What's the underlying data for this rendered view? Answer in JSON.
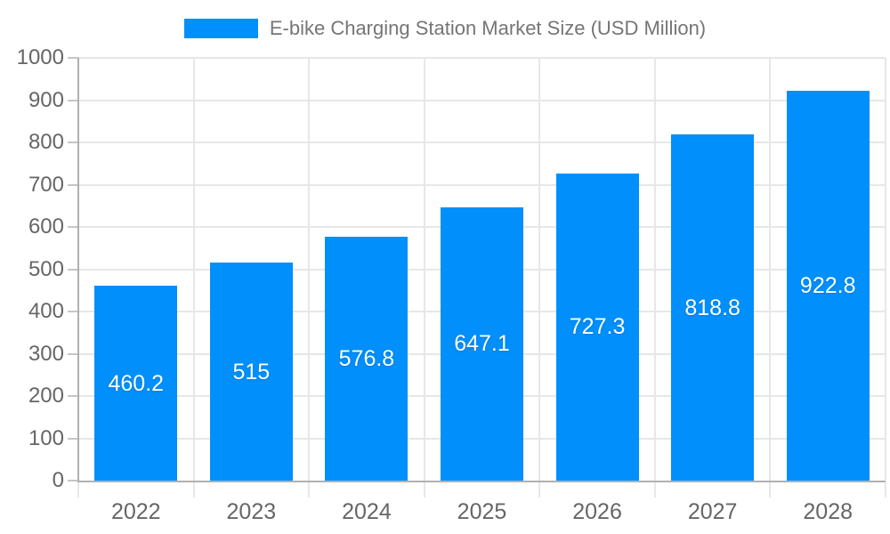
{
  "chart_data": {
    "type": "bar",
    "title": "E-bike Charging Station Market Size (USD Million)",
    "series_name": "E-bike Charging Station Market Size (USD Million)",
    "categories": [
      "2022",
      "2023",
      "2024",
      "2025",
      "2026",
      "2027",
      "2028"
    ],
    "values": [
      460.2,
      515,
      576.8,
      647.1,
      727.3,
      818.8,
      922.8
    ],
    "value_labels": [
      "460.2",
      "515",
      "576.8",
      "647.1",
      "727.3",
      "818.8",
      "922.8"
    ],
    "ylim": [
      0,
      1000
    ],
    "ytick_labels": [
      "0",
      "100",
      "200",
      "300",
      "400",
      "500",
      "600",
      "700",
      "800",
      "900",
      "1000"
    ],
    "grid": true,
    "legend_position": "top",
    "colors": {
      "bar": "#008FFB",
      "grid": "#e7e7e7",
      "axis_line": "#b0b0b0",
      "y_tick": "#c6c6c6",
      "x_tick": "#e7e7e7",
      "axis_label": "#666666",
      "legend_text": "#757575",
      "value_label": "#ffffff",
      "background": "#ffffff"
    }
  }
}
